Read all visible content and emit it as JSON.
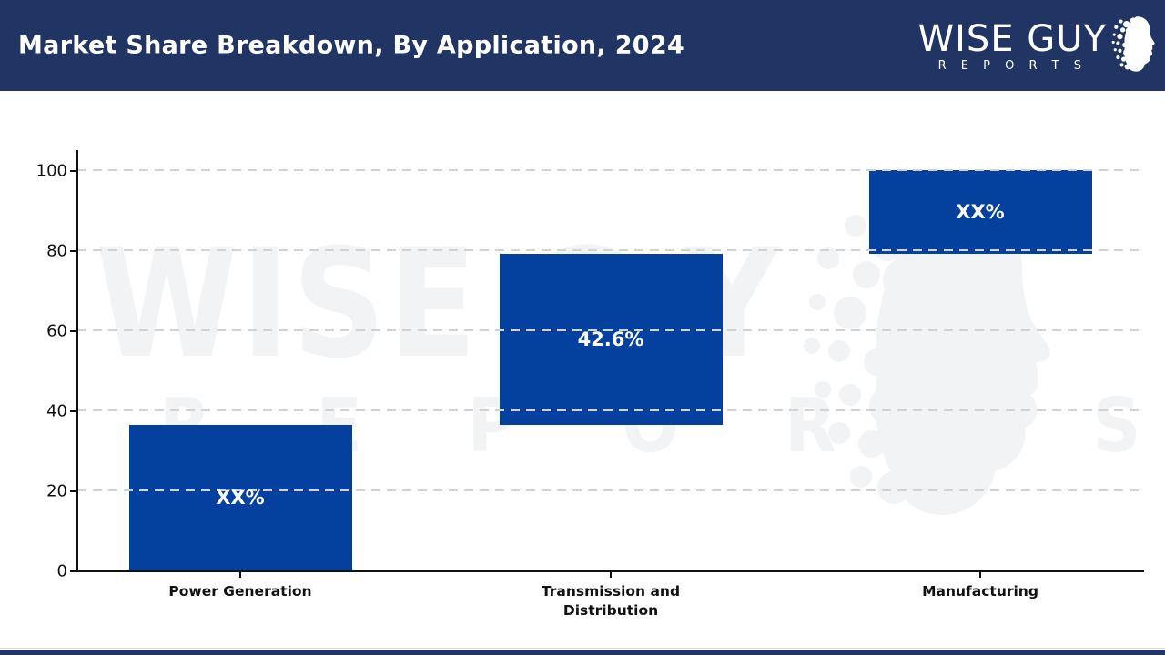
{
  "header": {
    "title": "Market Share Breakdown, By Application, 2024",
    "logo": {
      "line1": "WISE GUY",
      "line2": "R E P O R T S"
    }
  },
  "watermark": {
    "line1": "WISE G Y",
    "line2": "R E P O R T S"
  },
  "chart_data": {
    "type": "bar",
    "subtype": "waterfall",
    "title": "Market Share Breakdown, By Application, 2024",
    "categories": [
      "Power Generation",
      "Transmission and Distribution",
      "Manufacturing"
    ],
    "bars": [
      {
        "category": "Power Generation",
        "label_lines": [
          "Power Generation"
        ],
        "start": 0,
        "end": 36.4,
        "label": "XX%"
      },
      {
        "category": "Transmission and Distribution",
        "label_lines": [
          "Transmission and",
          "Distribution"
        ],
        "start": 36.4,
        "end": 79.0,
        "label": "42.6%"
      },
      {
        "category": "Manufacturing",
        "label_lines": [
          "Manufacturing"
        ],
        "start": 79.0,
        "end": 100,
        "label": "XX%"
      }
    ],
    "ylim": [
      0,
      100
    ],
    "yticks": [
      0,
      20,
      40,
      60,
      80,
      100
    ],
    "grid": "dashed horizontal, drawn over bars",
    "legend": "none",
    "xlabel": "",
    "ylabel": ""
  },
  "colors": {
    "header_bg": "#213564",
    "bar": "#04419e",
    "bar_label": "#ffffff",
    "grid": "#d2d2d2",
    "axis": "#111111",
    "watermark": "#f2f3f5",
    "footer_bar": "#213564"
  }
}
